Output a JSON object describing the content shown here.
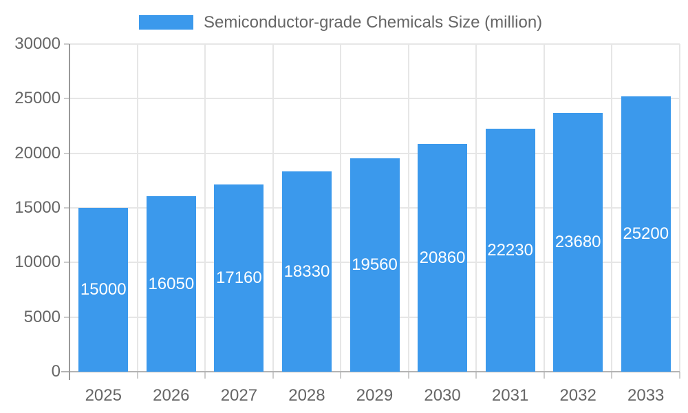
{
  "chart_data": {
    "type": "bar",
    "title": "Semiconductor-grade Chemicals Size (million)",
    "legend": [
      "Semiconductor-grade Chemicals Size (million)"
    ],
    "legend_position": "top",
    "categories": [
      "2025",
      "2026",
      "2027",
      "2028",
      "2029",
      "2030",
      "2031",
      "2032",
      "2033"
    ],
    "values": [
      15000,
      16050,
      17160,
      18330,
      19560,
      20860,
      22230,
      23680,
      25200
    ],
    "xlabel": "",
    "ylabel": "",
    "ylim": [
      0,
      30000
    ],
    "yticks": [
      0,
      5000,
      10000,
      15000,
      20000,
      25000,
      30000
    ],
    "grid": true,
    "value_labels": "inside-center"
  },
  "colors": {
    "bar": "#3b99ec",
    "bar_label": "#ffffff",
    "grid": "#e6e6e6",
    "y_axis_line": "#999999",
    "x_axis_line": "#b3b3b3",
    "tick": "#cccccc",
    "axis_text": "#666666",
    "background": "#ffffff"
  }
}
